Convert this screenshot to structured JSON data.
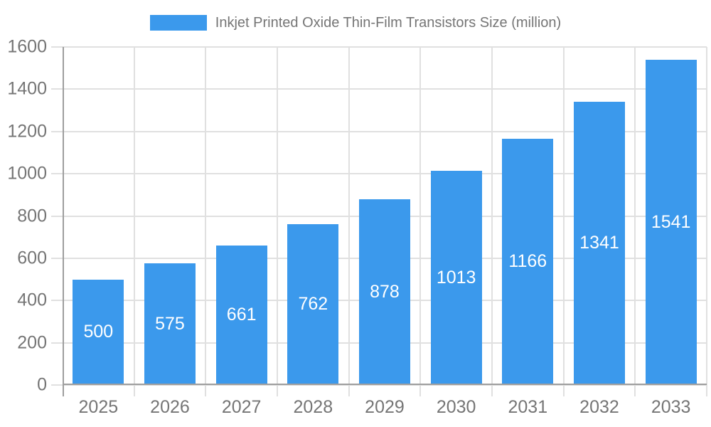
{
  "legend": {
    "label": "Inkjet Printed Oxide Thin-Film Transistors Size (million)"
  },
  "chart_data": {
    "type": "bar",
    "title": "Inkjet Printed Oxide Thin-Film Transistors Size (million)",
    "categories": [
      "2025",
      "2026",
      "2027",
      "2028",
      "2029",
      "2030",
      "2031",
      "2032",
      "2033"
    ],
    "values": [
      500,
      575,
      661,
      762,
      878,
      1013,
      1166,
      1341,
      1541
    ],
    "xlabel": "",
    "ylabel": "",
    "ylim": [
      0,
      1600
    ],
    "ytick_step": 200,
    "yticks": [
      0,
      200,
      400,
      600,
      800,
      1000,
      1200,
      1400,
      1600
    ],
    "grid": "both",
    "legend_position": "top-center",
    "value_label_style": "inside-center-white"
  },
  "colors": {
    "bar": "#3B99EC",
    "grid": "#E0E0E0",
    "axis": "#9E9E9E",
    "tick_text": "#757575",
    "value_text": "#FFFFFF",
    "background": "#FFFFFF"
  }
}
